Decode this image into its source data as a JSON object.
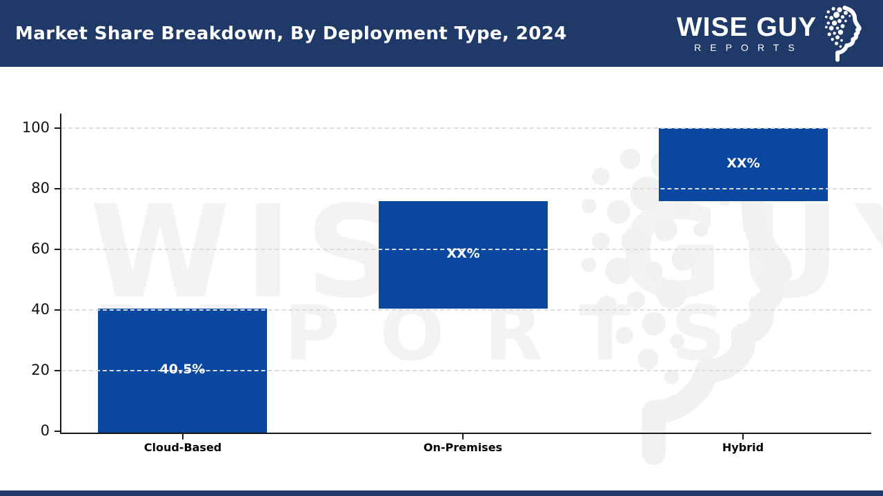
{
  "header": {
    "title": "Market Share Breakdown, By Deployment Type, 2024",
    "background_color": "#1f3a68",
    "logo": {
      "line1": "WISE GUY",
      "line2": "REPORTS"
    }
  },
  "watermark": {
    "line1": "WISE GUY",
    "line2": "REPORTS"
  },
  "footer": {
    "background_color": "#1f3a68"
  },
  "chart_data": {
    "type": "bar",
    "subtype": "waterfall",
    "title": "Market Share Breakdown, By Deployment Type, 2024",
    "categories": [
      "Cloud-Based",
      "On-Premises",
      "Hybrid"
    ],
    "segments": [
      {
        "category": "Cloud-Based",
        "start": 0,
        "end": 40.5,
        "label": "40.5%"
      },
      {
        "category": "On-Premises",
        "start": 40.5,
        "end": 76,
        "label": "XX%"
      },
      {
        "category": "Hybrid",
        "start": 76,
        "end": 100,
        "label": "XX%"
      }
    ],
    "bar_color": "#0a47a1",
    "label_color": "#ffffff",
    "yticks": [
      0,
      20,
      40,
      60,
      80,
      100
    ],
    "ylim": [
      0,
      105
    ],
    "xlabel": "",
    "ylabel": "",
    "grid": "horizontal-dashed",
    "gridline_color": "#dcdcdc",
    "legend": "none"
  }
}
